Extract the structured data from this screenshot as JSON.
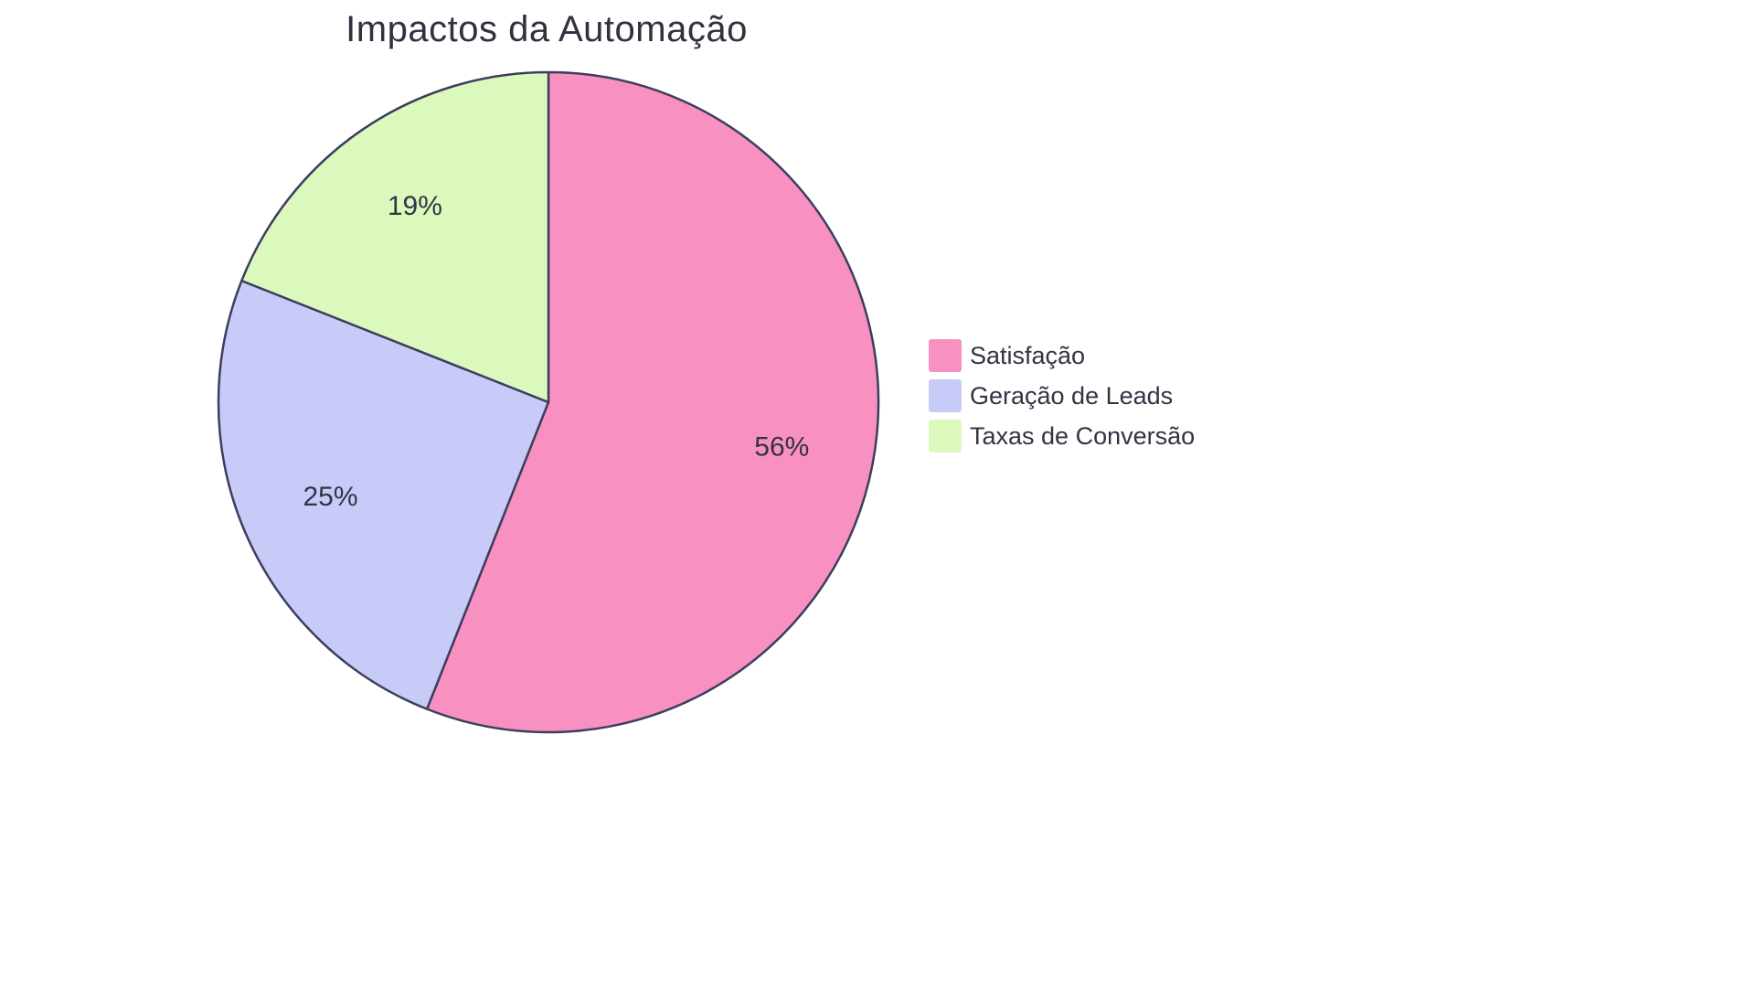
{
  "chart_data": {
    "type": "pie",
    "title": "Impactos da Automação",
    "labels": [
      "Satisfação",
      "Geração de Leads",
      "Taxas de Conversão"
    ],
    "values": [
      56,
      25,
      19
    ],
    "value_labels": [
      "56%",
      "25%",
      "19%"
    ],
    "colors": [
      "#F891C2",
      "#C8CAF8",
      "#DBF9BD"
    ],
    "stroke_color": "#3D3E5E",
    "text_color": "#333344",
    "legend_position": "right",
    "start_angle_deg": 0,
    "direction": "clockwise"
  }
}
